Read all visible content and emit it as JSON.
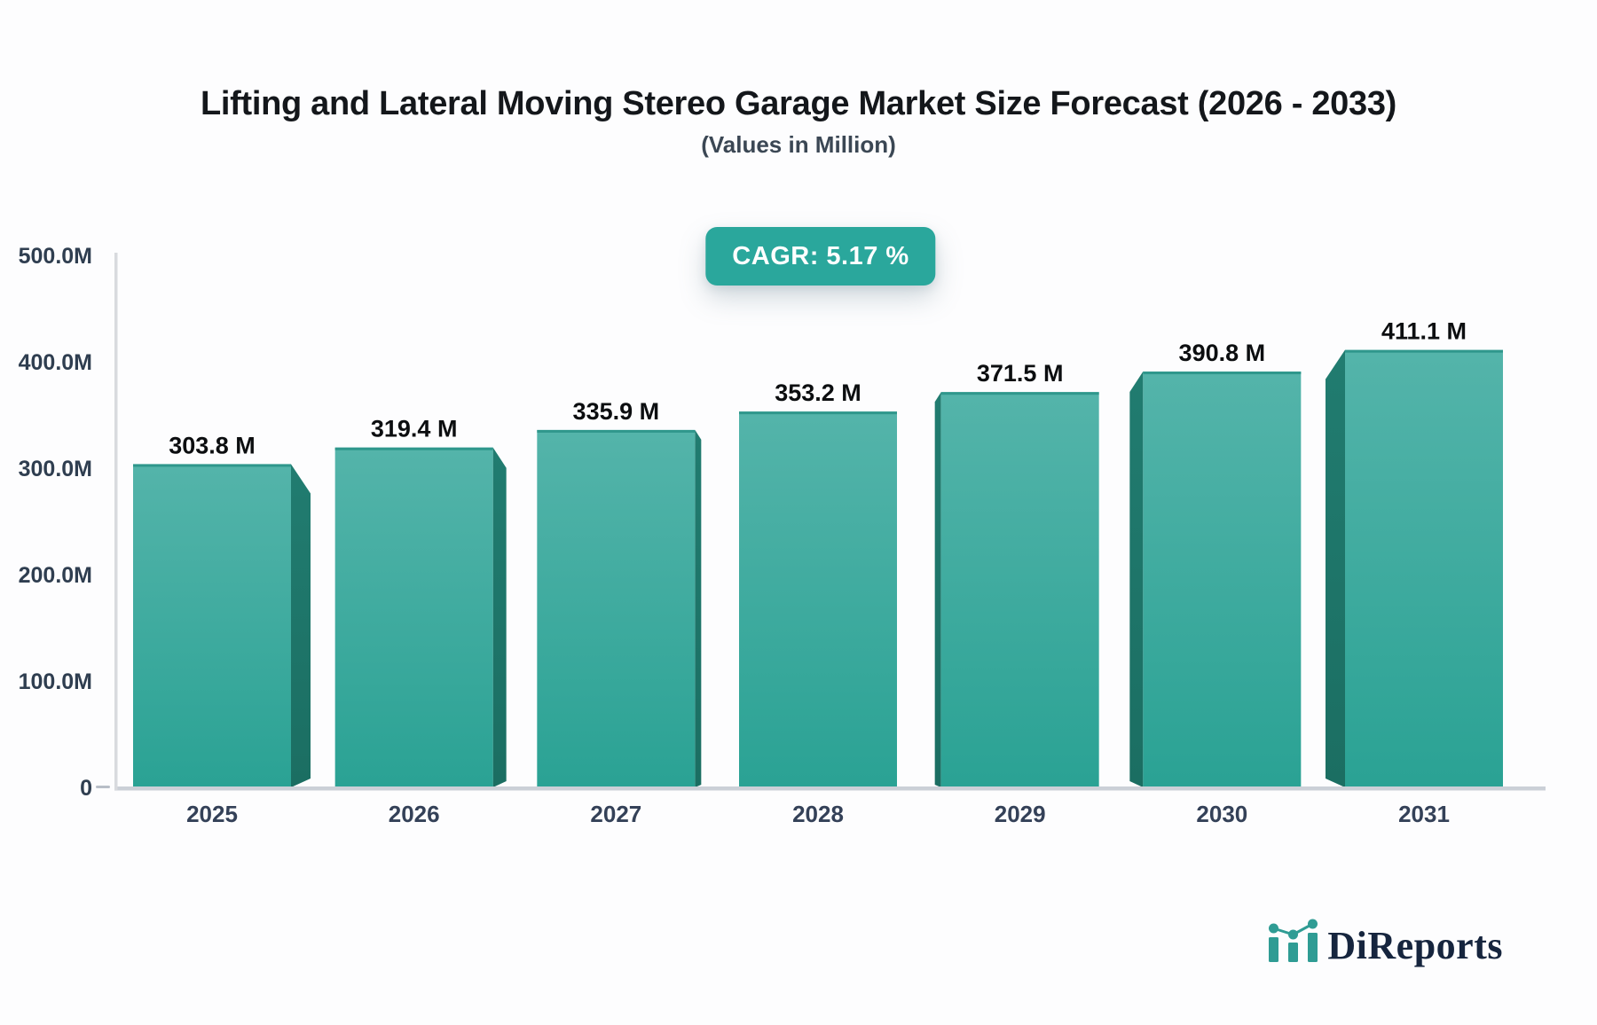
{
  "chart_data": {
    "type": "bar",
    "title": "Lifting and Lateral Moving Stereo Garage Market Size Forecast (2026 - 2033)",
    "subtitle": "(Values in Million)",
    "cagr_badge": "CAGR: 5.17 %",
    "categories": [
      "2025",
      "2026",
      "2027",
      "2028",
      "2029",
      "2030",
      "2031"
    ],
    "values": [
      303.8,
      319.4,
      335.9,
      353.2,
      371.5,
      390.8,
      411.1
    ],
    "value_labels": [
      "303.8 M",
      "319.4 M",
      "335.9 M",
      "353.2 M",
      "371.5 M",
      "390.8 M",
      "411.1 M"
    ],
    "unit": "Million",
    "xlabel": "",
    "ylabel": "",
    "ylim": [
      0,
      500
    ],
    "yticks": {
      "values": [
        0,
        100,
        200,
        300,
        400,
        500
      ],
      "labels": [
        "0",
        "100.0M",
        "200.0M",
        "300.0M",
        "400.0M",
        "500.0M"
      ]
    },
    "grid": false,
    "legend": "none",
    "bar_style": "3d-perspective-center-vanishing"
  },
  "branding": {
    "logo_text": "DiReports",
    "logo_icon": "mini-bar-line-chart-icon"
  },
  "colors": {
    "bar_face_top": "#54b4aa",
    "bar_face_bottom": "#2aa294",
    "bar_top_edge": "#2f978c",
    "bar_side_top": "#217c70",
    "bar_side_bottom": "#1b6e62",
    "badge_bg": "#2aa79c",
    "badge_text": "#ffffff",
    "axis_line": "#d8dade",
    "baseline": "#cbd0d7",
    "zero_tick": "#b8bec7",
    "title_text": "#14171b",
    "subtitle_text": "#3b4754",
    "tick_text": "#2f3e50",
    "year_text": "#344158",
    "value_text": "#0c0e10",
    "logo_teal": "#2f9c94",
    "logo_navy": "#16253e"
  }
}
